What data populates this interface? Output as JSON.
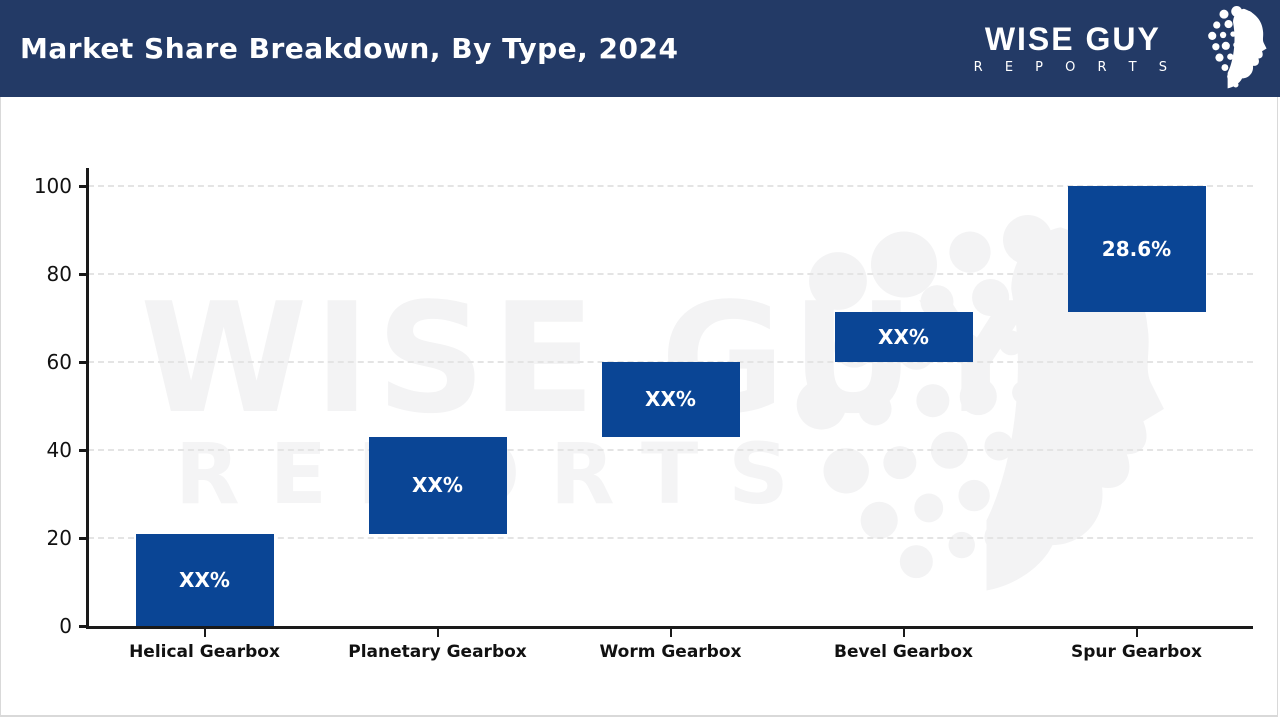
{
  "header": {
    "title": "Market Share Breakdown, By Type, 2024",
    "bg_color": "#233a66",
    "brand": {
      "line1": "WISE GUY",
      "line2": "R E P O R T S",
      "face_icon": "dotted-face-profile"
    }
  },
  "watermark": {
    "line1": "WISE GUY",
    "line2": "REPORTS",
    "color": "#f3f3f4",
    "face_icon": "dotted-face-profile"
  },
  "chart_data": {
    "type": "bar",
    "subtype": "waterfall",
    "title": "Market Share Breakdown, By Type, 2024",
    "categories": [
      "Helical Gearbox",
      "Planetary Gearbox",
      "Worm Gearbox",
      "Bevel Gearbox",
      "Spur Gearbox"
    ],
    "segments": [
      {
        "category": "Helical Gearbox",
        "from": 0,
        "to": 21,
        "label": "XX%"
      },
      {
        "category": "Planetary Gearbox",
        "from": 21,
        "to": 43,
        "label": "XX%"
      },
      {
        "category": "Worm Gearbox",
        "from": 43,
        "to": 60,
        "label": "XX%"
      },
      {
        "category": "Bevel Gearbox",
        "from": 60,
        "to": 71.4,
        "label": "XX%"
      },
      {
        "category": "Spur Gearbox",
        "from": 71.4,
        "to": 100,
        "label": "28.6%"
      }
    ],
    "ylim": [
      0,
      100
    ],
    "yticks": [
      0,
      20,
      40,
      60,
      80,
      100
    ],
    "xlabel": "",
    "ylabel": "",
    "grid": "dashed-horizontal",
    "legend": "none",
    "bar_color": "#0a4595",
    "bar_label_color": "#ffffff",
    "axis_color": "#1a1a1a"
  }
}
